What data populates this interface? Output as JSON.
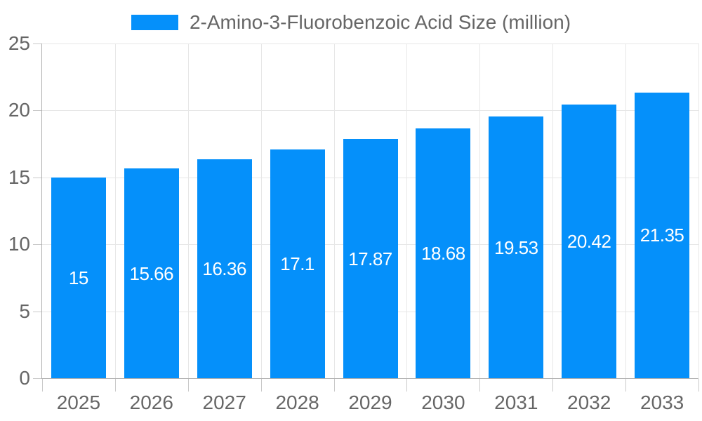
{
  "chart_data": {
    "type": "bar",
    "title": "",
    "legend_position": "top-center",
    "series": [
      {
        "name": "2-Amino-3-Fluorobenzoic Acid Size (million)",
        "values": [
          15,
          15.66,
          16.36,
          17.1,
          17.87,
          18.68,
          19.53,
          20.42,
          21.35
        ]
      }
    ],
    "categories": [
      "2025",
      "2026",
      "2027",
      "2028",
      "2029",
      "2030",
      "2031",
      "2032",
      "2033"
    ],
    "value_labels": [
      "15",
      "15.66",
      "16.36",
      "17.1",
      "17.87",
      "18.68",
      "19.53",
      "20.42",
      "21.35"
    ],
    "xlabel": "",
    "ylabel": "",
    "ylim": [
      0,
      25
    ],
    "ytick_labels": [
      "0",
      "5",
      "10",
      "15",
      "20",
      "25"
    ],
    "ytick_values": [
      0,
      5,
      10,
      15,
      20,
      25
    ],
    "grid": "on",
    "colors": {
      "bar": "#0590fa",
      "grid": "#e7e7e7",
      "axis": "#b0b0b0",
      "tick": "#c9c9c9",
      "axis_label": "#666666",
      "value_label": "#ffffff",
      "background": "#ffffff"
    }
  }
}
